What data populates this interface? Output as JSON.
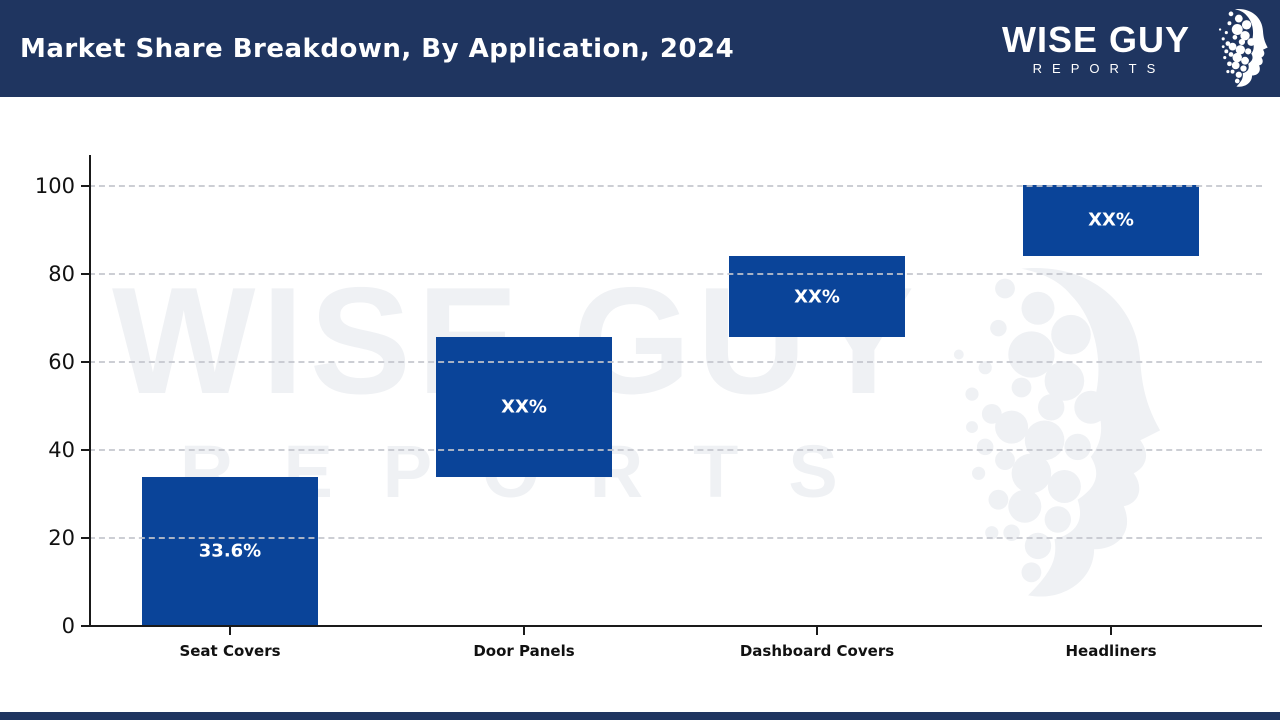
{
  "header": {
    "title": "Market Share Breakdown, By Application, 2024",
    "brand": {
      "name": "WISE GUY",
      "sub": "REPORTS"
    },
    "bg_color": "#1f3560"
  },
  "watermark": {
    "line1": "WISE GUY",
    "line2": "REPORTS"
  },
  "chart_data": {
    "type": "bar",
    "variant": "waterfall-floating-bars",
    "title": "Market Share Breakdown, By Application, 2024",
    "categories": [
      "Seat Covers",
      "Door Panels",
      "Dashboard Covers",
      "Headliners"
    ],
    "segments": [
      {
        "category": "Seat Covers",
        "start": 0,
        "end": 33.6,
        "value": 33.6,
        "label": "33.6%"
      },
      {
        "category": "Door Panels",
        "start": 33.6,
        "end": 65.4,
        "value": 31.8,
        "label": "XX%"
      },
      {
        "category": "Dashboard Covers",
        "start": 65.4,
        "end": 83.9,
        "value": 18.5,
        "label": "XX%"
      },
      {
        "category": "Headliners",
        "start": 83.9,
        "end": 100,
        "value": 16.1,
        "label": "XX%"
      }
    ],
    "yticks": [
      0,
      20,
      40,
      60,
      80,
      100
    ],
    "ylim": [
      0,
      106
    ],
    "xlabel": "",
    "ylabel": "",
    "grid": "horizontal dashed, drawn above bars",
    "legend": null,
    "bar_color": "#0a4499",
    "label_color": "#ffffff",
    "axis_color": "#1a1a1a"
  },
  "footer": {
    "bg_color": "#1f3560"
  }
}
